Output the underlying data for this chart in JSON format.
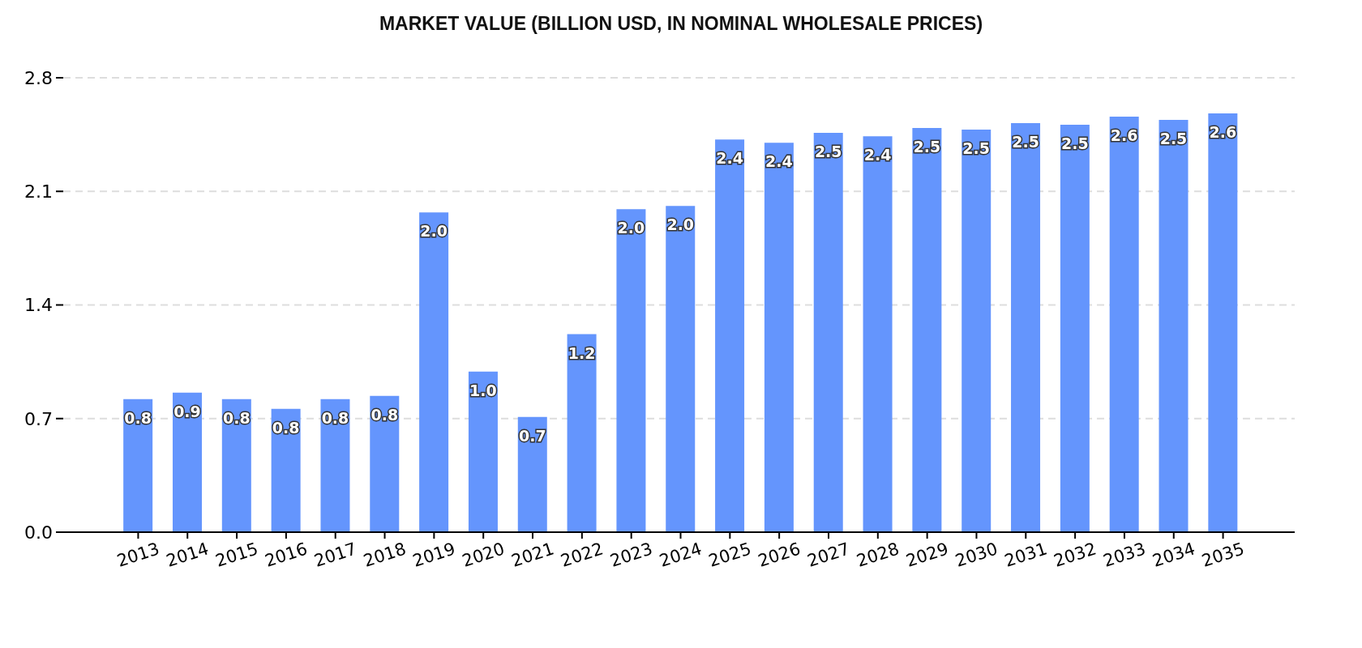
{
  "chart_data": {
    "type": "bar",
    "title": "MARKET VALUE (BILLION USD, IN NOMINAL WHOLESALE PRICES)",
    "categories": [
      "2013",
      "2014",
      "2015",
      "2016",
      "2017",
      "2018",
      "2019",
      "2020",
      "2021",
      "2022",
      "2023",
      "2024",
      "2025",
      "2026",
      "2027",
      "2028",
      "2029",
      "2030",
      "2031",
      "2032",
      "2033",
      "2034",
      "2035"
    ],
    "values": [
      0.82,
      0.86,
      0.82,
      0.76,
      0.82,
      0.84,
      1.97,
      0.99,
      0.71,
      1.22,
      1.99,
      2.01,
      2.42,
      2.4,
      2.46,
      2.44,
      2.49,
      2.48,
      2.52,
      2.51,
      2.56,
      2.54,
      2.58
    ],
    "value_labels": [
      "0.8",
      "0.9",
      "0.8",
      "0.8",
      "0.8",
      "0.8",
      "2.0",
      "1.0",
      "0.7",
      "1.2",
      "2.0",
      "2.0",
      "2.4",
      "2.4",
      "2.5",
      "2.4",
      "2.5",
      "2.5",
      "2.5",
      "2.5",
      "2.6",
      "2.5",
      "2.6"
    ],
    "color": "#6495fd",
    "ylim": [
      0,
      2.8
    ],
    "yticks": [
      {
        "value": 0,
        "label": "0.0"
      },
      0.7,
      1.4,
      2.1,
      2.8
    ],
    "grid": "y"
  }
}
